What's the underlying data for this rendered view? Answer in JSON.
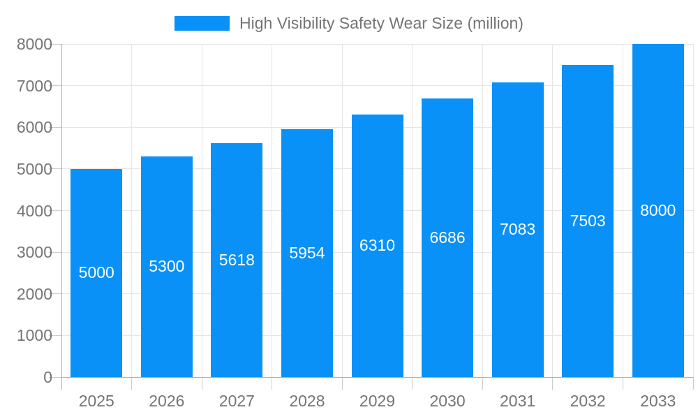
{
  "legend": {
    "label": "High Visibility Safety Wear Size (million)"
  },
  "colors": {
    "bar": "#0991f7",
    "gridline": "#e6e6e6",
    "axis": "#b3b3b3",
    "tick": "#cccccc",
    "label_text": "#757575",
    "bar_value_text": "#ffffff"
  },
  "chart_data": {
    "type": "bar",
    "title": "High Visibility Safety Wear Size (million)",
    "categories": [
      "2025",
      "2026",
      "2027",
      "2028",
      "2029",
      "2030",
      "2031",
      "2032",
      "2033"
    ],
    "values": [
      5000,
      5300,
      5618,
      5954,
      6310,
      6686,
      7083,
      7503,
      8000
    ],
    "series_name": "High Visibility Safety Wear Size (million)",
    "xlabel": "",
    "ylabel": "",
    "ylim": [
      0,
      8000
    ],
    "yticks": [
      0,
      1000,
      2000,
      3000,
      4000,
      5000,
      6000,
      7000,
      8000
    ],
    "grid": "horizontal and vertical light gray gridlines",
    "legend_position": "top-center",
    "value_labels": "white, centered inside each bar"
  }
}
